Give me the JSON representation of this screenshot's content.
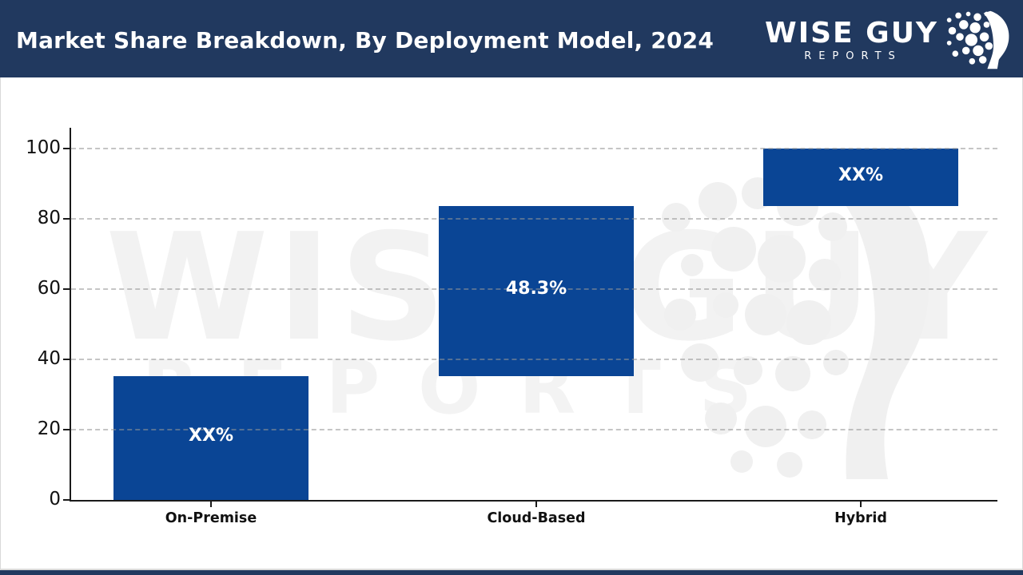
{
  "header": {
    "title": "Market Share Breakdown, By Deployment Model, 2024",
    "logo": {
      "line1": "WISE GUY",
      "line2": "REPORTS"
    }
  },
  "watermark": {
    "line1": "WISE GUY",
    "line2": "REPORTS"
  },
  "chart_data": {
    "type": "bar",
    "subtype": "waterfall",
    "title": "Market Share Breakdown, By Deployment Model, 2024",
    "categories": [
      "On-Premise",
      "Cloud-Based",
      "Hybrid"
    ],
    "segments": [
      {
        "category": "On-Premise",
        "start": 0,
        "end": 35.3,
        "bar_label": "XX%"
      },
      {
        "category": "Cloud-Based",
        "start": 35.3,
        "end": 83.6,
        "bar_label": "48.3%"
      },
      {
        "category": "Hybrid",
        "start": 83.6,
        "end": 100,
        "bar_label": "XX%"
      }
    ],
    "xlabel": "",
    "ylabel": "",
    "ylim": [
      0,
      100
    ],
    "yticks": [
      0,
      20,
      40,
      60,
      80,
      100
    ],
    "grid": "horizontal-dashed",
    "legend": "none"
  },
  "colors": {
    "header_bg": "#21395f",
    "footer_bg": "#21395f",
    "bar": "#0a4595",
    "bar_label_text": "#ffffff",
    "title_text": "#ffffff",
    "axis": "#1a1a1a",
    "grid": "#c9c9c9",
    "watermark": "#f2f2f2"
  }
}
